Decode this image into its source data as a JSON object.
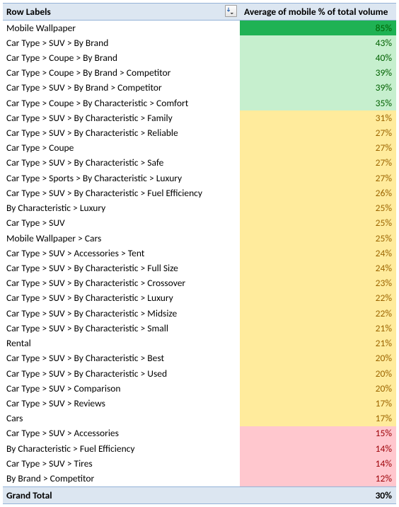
{
  "header": {
    "row_labels": "Row Labels",
    "value_header": "Average of mobile % of total volume"
  },
  "colors": {
    "header_bg": "#dce6f1",
    "header_border": "#95b3d7",
    "band_green_dark": "#1fb254",
    "band_green_light": "#c6efce",
    "band_yellow": "#ffeb9c",
    "band_pink": "#ffc7ce",
    "text_dark_green": "#006100",
    "text_dark_yellow": "#9c6500",
    "text_dark_red": "#9c0006"
  },
  "rows": [
    {
      "label": "Mobile Wallpaper",
      "value": "85%",
      "bg": "#1fb254",
      "fg": "#006100"
    },
    {
      "label": "Car Type > SUV > By Brand",
      "value": "43%",
      "bg": "#c6efce",
      "fg": "#006100"
    },
    {
      "label": "Car Type > Coupe > By Brand",
      "value": "40%",
      "bg": "#c6efce",
      "fg": "#006100"
    },
    {
      "label": "Car Type > Coupe > By Brand > Competitor",
      "value": "39%",
      "bg": "#c6efce",
      "fg": "#006100"
    },
    {
      "label": "Car Type > SUV > By Brand > Competitor",
      "value": "39%",
      "bg": "#c6efce",
      "fg": "#006100"
    },
    {
      "label": "Car Type > Coupe > By Characteristic > Comfort",
      "value": "35%",
      "bg": "#c6efce",
      "fg": "#006100"
    },
    {
      "label": "Car Type > SUV > By Characteristic > Family",
      "value": "31%",
      "bg": "#ffeb9c",
      "fg": "#9c6500"
    },
    {
      "label": "Car Type > SUV > By Characteristic > Reliable",
      "value": "27%",
      "bg": "#ffeb9c",
      "fg": "#9c6500"
    },
    {
      "label": "Car Type > Coupe",
      "value": "27%",
      "bg": "#ffeb9c",
      "fg": "#9c6500"
    },
    {
      "label": "Car Type > SUV > By Characteristic > Safe",
      "value": "27%",
      "bg": "#ffeb9c",
      "fg": "#9c6500"
    },
    {
      "label": "Car Type > Sports > By Characteristic > Luxury",
      "value": "27%",
      "bg": "#ffeb9c",
      "fg": "#9c6500"
    },
    {
      "label": "Car Type > SUV > By Characteristic > Fuel Efficiency",
      "value": "26%",
      "bg": "#ffeb9c",
      "fg": "#9c6500"
    },
    {
      "label": "By Characteristic > Luxury",
      "value": "25%",
      "bg": "#ffeb9c",
      "fg": "#9c6500"
    },
    {
      "label": "Car Type > SUV",
      "value": "25%",
      "bg": "#ffeb9c",
      "fg": "#9c6500"
    },
    {
      "label": "Mobile Wallpaper > Cars",
      "value": "25%",
      "bg": "#ffeb9c",
      "fg": "#9c6500"
    },
    {
      "label": "Car Type > SUV > Accessories > Tent",
      "value": "24%",
      "bg": "#ffeb9c",
      "fg": "#9c6500"
    },
    {
      "label": "Car Type > SUV > By Characteristic > Full Size",
      "value": "24%",
      "bg": "#ffeb9c",
      "fg": "#9c6500"
    },
    {
      "label": "Car Type > SUV > By Characteristic > Crossover",
      "value": "23%",
      "bg": "#ffeb9c",
      "fg": "#9c6500"
    },
    {
      "label": "Car Type > SUV > By Characteristic > Luxury",
      "value": "22%",
      "bg": "#ffeb9c",
      "fg": "#9c6500"
    },
    {
      "label": "Car Type > SUV > By Characteristic > Midsize",
      "value": "22%",
      "bg": "#ffeb9c",
      "fg": "#9c6500"
    },
    {
      "label": "Car Type > SUV > By Characteristic > Small",
      "value": "21%",
      "bg": "#ffeb9c",
      "fg": "#9c6500"
    },
    {
      "label": "Rental",
      "value": "21%",
      "bg": "#ffeb9c",
      "fg": "#9c6500"
    },
    {
      "label": "Car Type > SUV > By Characteristic > Best",
      "value": "20%",
      "bg": "#ffeb9c",
      "fg": "#9c6500"
    },
    {
      "label": "Car Type > SUV > By Characteristic > Used",
      "value": "20%",
      "bg": "#ffeb9c",
      "fg": "#9c6500"
    },
    {
      "label": "Car Type > SUV > Comparison",
      "value": "20%",
      "bg": "#ffeb9c",
      "fg": "#9c6500"
    },
    {
      "label": "Car Type > SUV > Reviews",
      "value": "17%",
      "bg": "#ffeb9c",
      "fg": "#9c6500"
    },
    {
      "label": "Cars",
      "value": "17%",
      "bg": "#ffeb9c",
      "fg": "#9c6500"
    },
    {
      "label": "Car Type > SUV > Accessories",
      "value": "15%",
      "bg": "#ffc7ce",
      "fg": "#9c0006"
    },
    {
      "label": "By Characteristic > Fuel Efficiency",
      "value": "14%",
      "bg": "#ffc7ce",
      "fg": "#9c0006"
    },
    {
      "label": "Car Type > SUV > Tires",
      "value": "14%",
      "bg": "#ffc7ce",
      "fg": "#9c0006"
    },
    {
      "label": "By Brand > Competitor",
      "value": "12%",
      "bg": "#ffc7ce",
      "fg": "#9c0006"
    }
  ],
  "total": {
    "label": "Grand Total",
    "value": "30%"
  }
}
